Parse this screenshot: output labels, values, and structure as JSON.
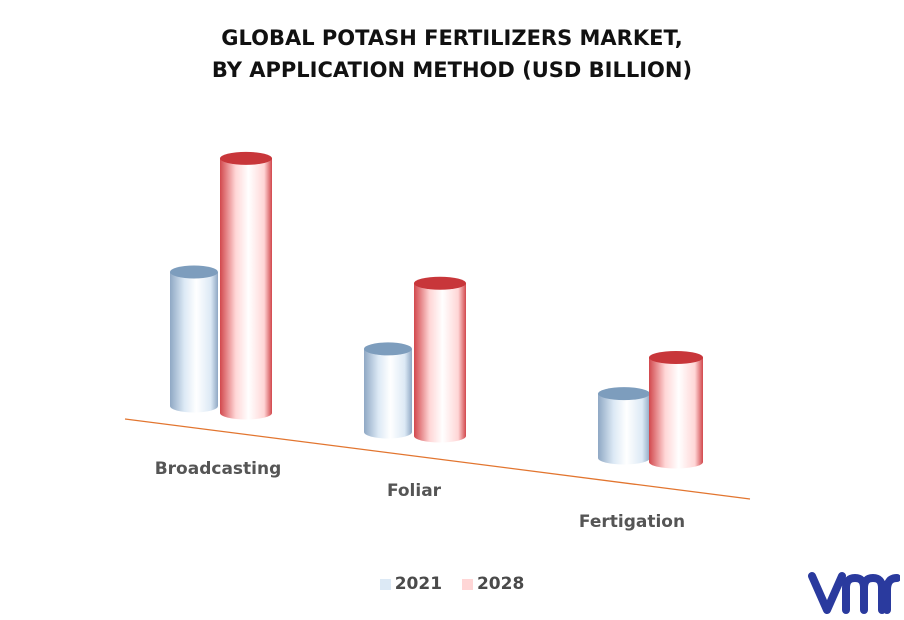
{
  "title_line1": "GLOBAL POTASH FERTILIZERS MARKET,",
  "title_line2": "BY APPLICATION METHOD (USD BILLION)",
  "chart_data": {
    "type": "bar",
    "categories": [
      "Broadcasting",
      "Foliar",
      "Fertigation"
    ],
    "series": [
      {
        "name": "2021",
        "values": [
          5.0,
          3.1,
          2.4
        ]
      },
      {
        "name": "2028",
        "values": [
          9.5,
          5.7,
          3.9
        ]
      }
    ],
    "ylim": [
      0,
      10
    ],
    "grid": false,
    "legend_position": "bottom-center"
  },
  "colors": {
    "series_2021": "#dce9f5",
    "series_2021_top": "#7d9dbd",
    "series_2028": "#ffd6d6",
    "series_2028_top": "#c8363a",
    "baseline": "#e2752f",
    "logo": "#2a3a9e"
  },
  "logo_icon": "vmr-logo-icon"
}
